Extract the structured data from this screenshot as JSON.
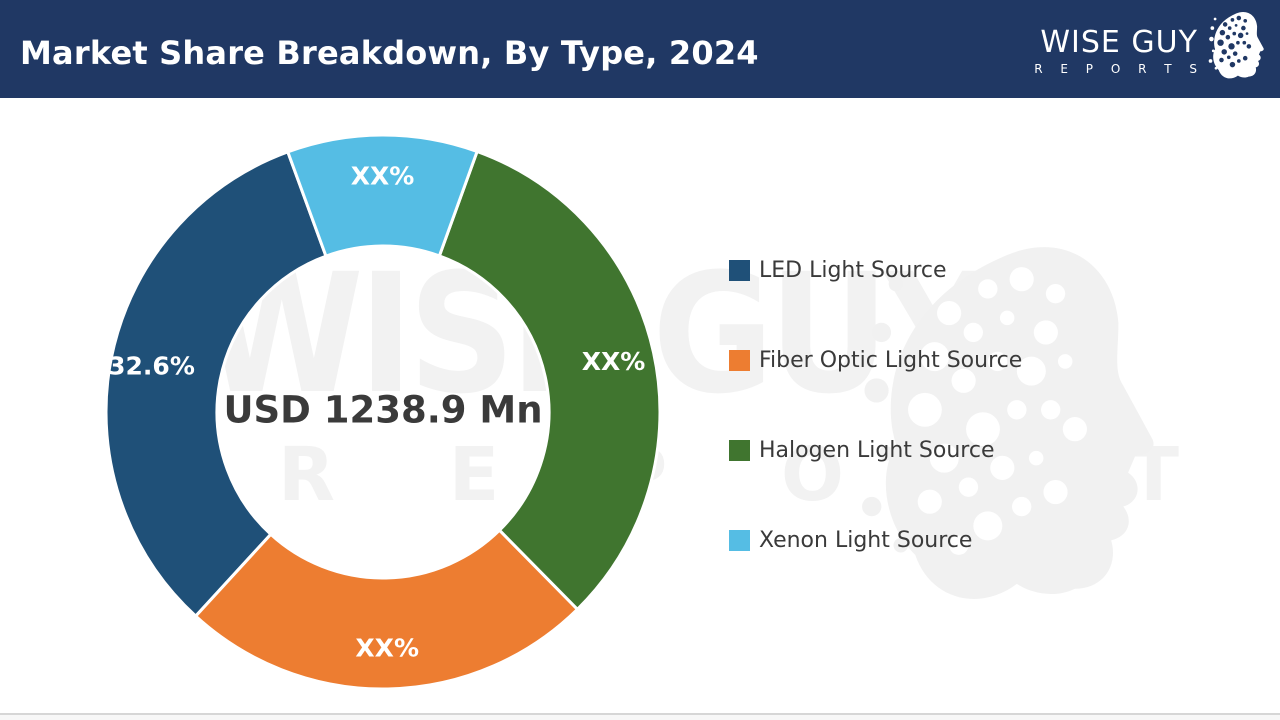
{
  "header": {
    "title": "Market Share Breakdown, By Type, 2024",
    "logo": {
      "line1": "WISE GUY",
      "line2": "R E P O R T S"
    }
  },
  "watermark": {
    "line1": "WISE GUY",
    "line2": "R E P O R T S"
  },
  "chart_data": {
    "type": "pie",
    "variant": "donut",
    "title": "Market Share Breakdown, By Type, 2024",
    "center_label": "USD 1238.9 Mn",
    "legend_position": "right",
    "start_angle_deg": -20.1,
    "direction": "counterclockwise",
    "inner_radius_ratio": 0.6,
    "segments": [
      {
        "name": "LED Light Source",
        "label": "32.6%",
        "value_pct": 32.6,
        "color": "#1f5078"
      },
      {
        "name": "Fiber Optic Light Source",
        "label": "XX%",
        "value_pct": 24.2,
        "color": "#ed7d31"
      },
      {
        "name": "Halogen Light Source",
        "label": "XX%",
        "value_pct": 32.1,
        "color": "#40752f"
      },
      {
        "name": "Xenon Light Source",
        "label": "XX%",
        "value_pct": 11.1,
        "color": "#55bde4"
      }
    ]
  }
}
